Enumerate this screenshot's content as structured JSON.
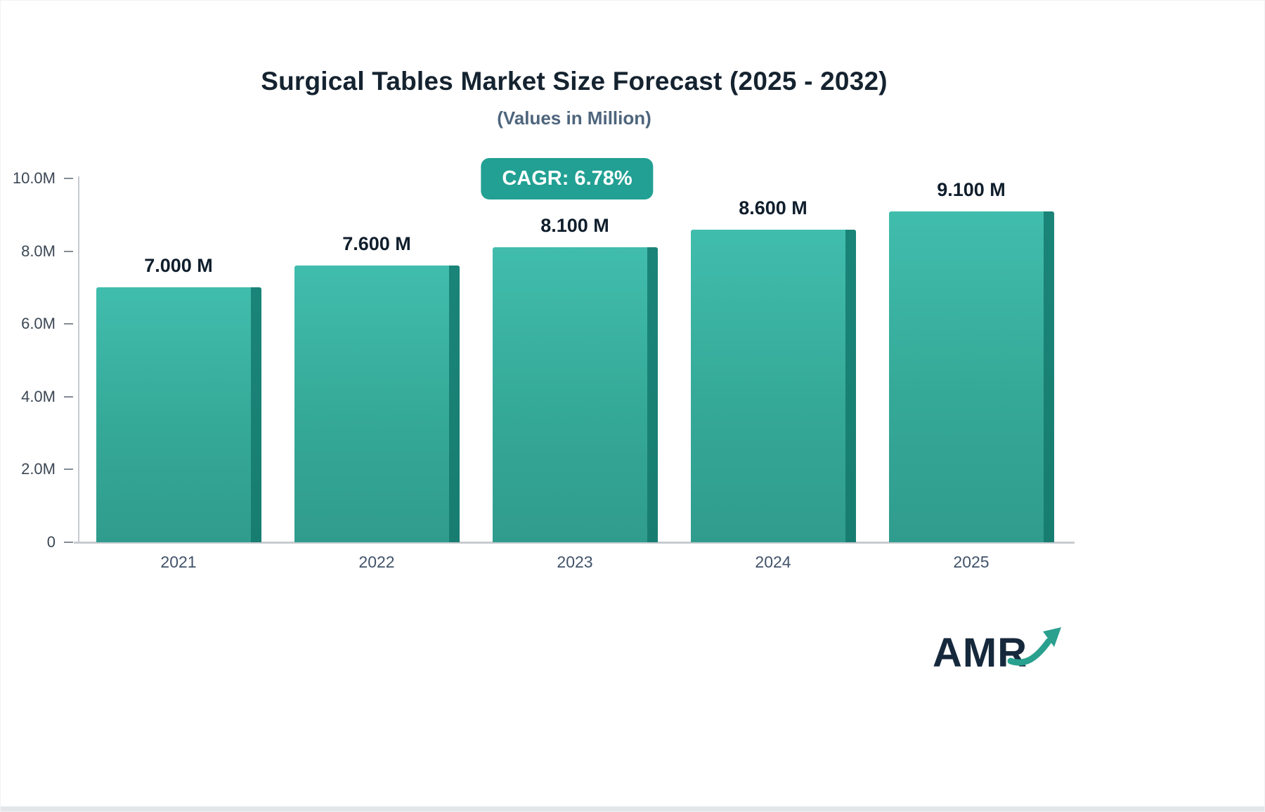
{
  "header": {
    "title": "Surgical Tables Market Size Forecast (2025 - 2032)",
    "subtitle": "(Values in Million)"
  },
  "badge": {
    "label": "CAGR: 6.78%",
    "color": "#21a093",
    "text_color": "#ffffff"
  },
  "chart_data": {
    "type": "bar",
    "title": "Surgical Tables Market Size Forecast (2025 - 2032)",
    "subtitle": "(Values in Million)",
    "unit": "Million",
    "categories": [
      "2021",
      "2022",
      "2023",
      "2024",
      "2025"
    ],
    "values": [
      7.0,
      7.6,
      8.1,
      8.6,
      9.1
    ],
    "value_labels": [
      "7.000 M",
      "7.600 M",
      "8.100 M",
      "8.600 M",
      "9.100 M"
    ],
    "annotation": "CAGR: 6.78%",
    "xlabel": "",
    "ylabel": "",
    "ylim": [
      0,
      10
    ],
    "yticks": [
      {
        "value": 10,
        "label": "10.0M"
      },
      {
        "value": 8,
        "label": "8.0M"
      },
      {
        "value": 6,
        "label": "6.0M"
      },
      {
        "value": 4,
        "label": "4.0M"
      },
      {
        "value": 2,
        "label": "2.0M"
      },
      {
        "value": 0,
        "label": "0"
      }
    ],
    "grid": false,
    "legend": "none",
    "bar_color_top": "#41bdad",
    "bar_color_bottom": "#309c8d",
    "bar_side_color": "#1a8478"
  },
  "logo": {
    "text": "AMR",
    "icon": "trending-up-arrow",
    "color": "#16293c",
    "accent": "#2aa08f"
  }
}
